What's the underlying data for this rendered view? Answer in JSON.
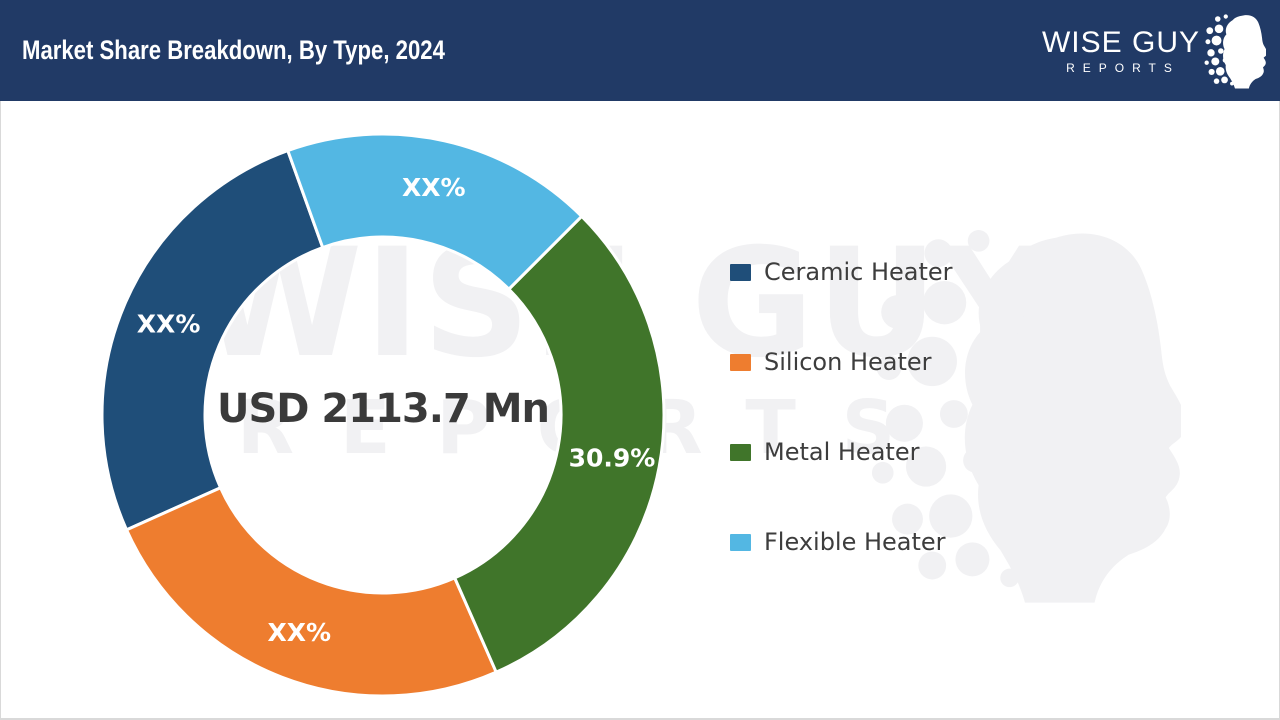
{
  "header": {
    "title": "Market Share Breakdown, By Type, 2024",
    "logo": {
      "wordmark": "WISE GUY",
      "subtitle": "REPORTS"
    }
  },
  "watermark": {
    "wordmark": "WISE GUY",
    "subtitle": "REPORTS"
  },
  "chart_data": {
    "type": "pie",
    "subtype": "donut",
    "title": "Market Share Breakdown, By Type, 2024",
    "center_label": "USD 2113.7 Mn",
    "legend_position": "right",
    "start_angle_deg": 340.2,
    "direction": "counterclockwise",
    "inner_radius_ratio": 0.63,
    "segments": [
      {
        "name": "Ceramic Heater",
        "displayed_label": "XX%",
        "value_pct": 26.2,
        "color": "#1F4E79"
      },
      {
        "name": "Silicon Heater",
        "displayed_label": "XX%",
        "value_pct": 24.9,
        "color": "#EE7D2F"
      },
      {
        "name": "Metal Heater",
        "displayed_label": "30.9%",
        "value_pct": 30.9,
        "color": "#40752A"
      },
      {
        "name": "Flexible Heater",
        "displayed_label": "XX%",
        "value_pct": 18.0,
        "color": "#53B7E3"
      }
    ],
    "colors": {
      "header_bg": "#213A66",
      "center_text": "#3A3A3A",
      "legend_text": "#3D3D3D",
      "watermark": "#F1F1F3",
      "segment_separator": "#FFFFFF"
    }
  }
}
